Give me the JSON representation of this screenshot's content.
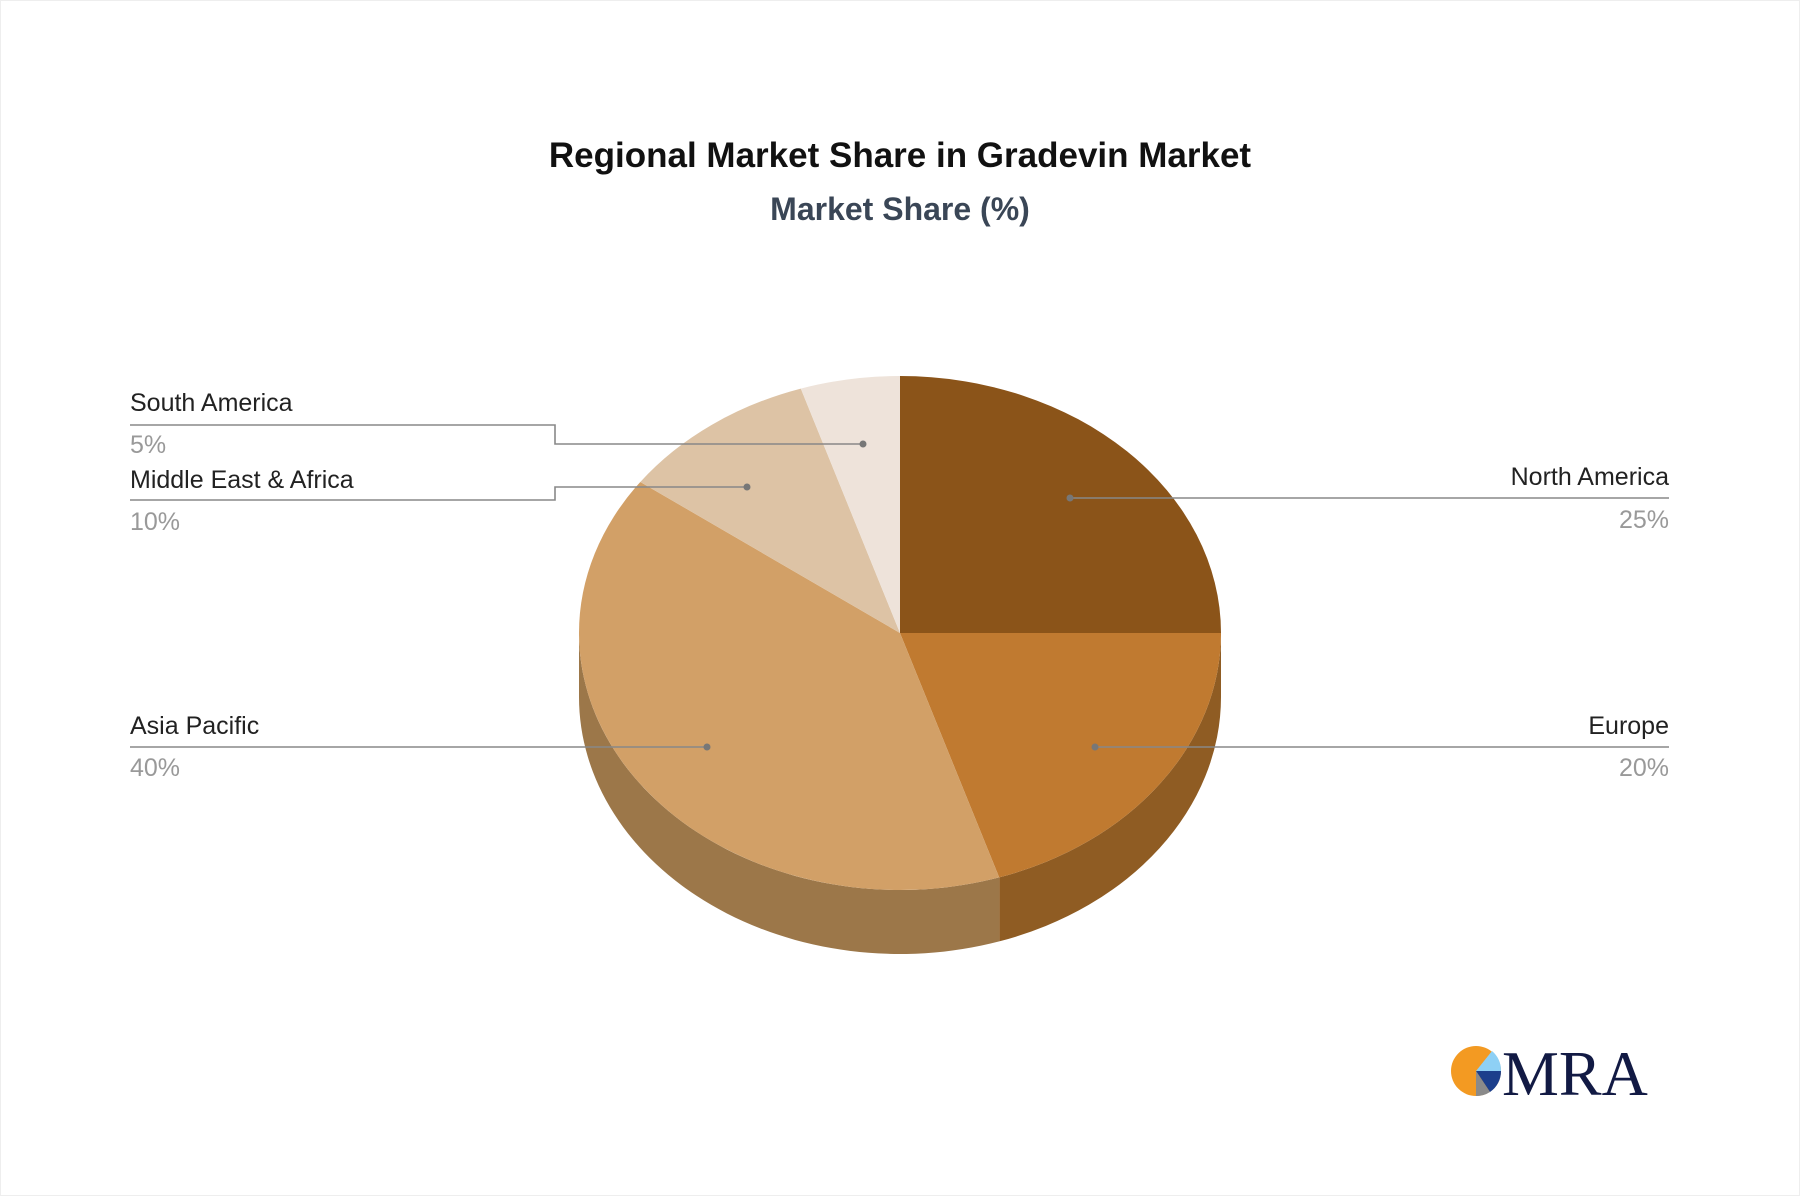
{
  "chart_data": {
    "type": "pie",
    "style": "3d",
    "title": "Regional Market Share in Gradevin Market",
    "subtitle": "Market Share (%)",
    "slices": [
      {
        "label": "North America",
        "value": 25,
        "value_label": "25%",
        "color": "#8B5419",
        "side_color": "#6E4214"
      },
      {
        "label": "Europe",
        "value": 20,
        "value_label": "20%",
        "color": "#C07A30",
        "side_color": "#8F5C23"
      },
      {
        "label": "Asia Pacific",
        "value": 40,
        "value_label": "40%",
        "color": "#D2A067",
        "side_color": "#9C7749"
      },
      {
        "label": "Middle East & Africa",
        "value": 10,
        "value_label": "10%",
        "color": "#DDC3A5",
        "side_color": "#A8927A"
      },
      {
        "label": "South America",
        "value": 5,
        "value_label": "5%",
        "color": "#EEE3DA",
        "side_color": "#B5ABA3"
      }
    ]
  },
  "logo": {
    "text": "MRA"
  }
}
